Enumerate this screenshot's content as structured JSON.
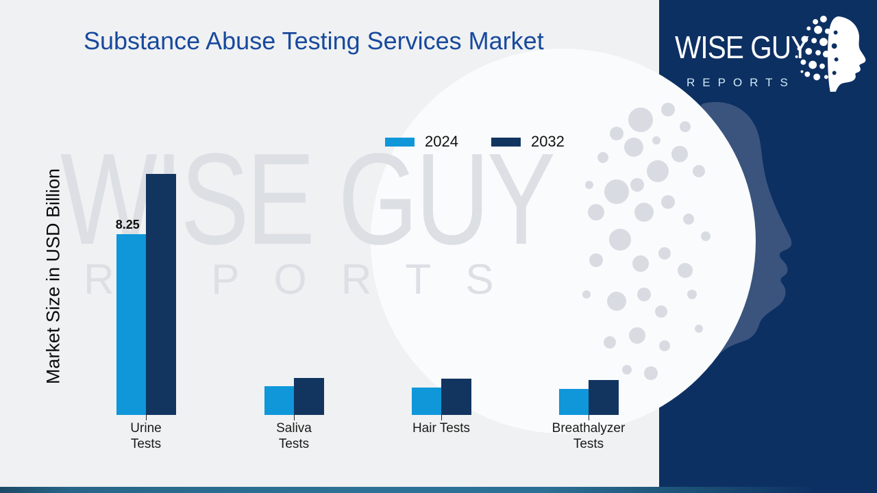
{
  "page": {
    "background": "#f0f1f2",
    "accent_navy": "#0d3063",
    "footer_stripe_teal": "#2d7296"
  },
  "title": {
    "text": "Substance Abuse Testing Services Market",
    "color": "#17499d"
  },
  "legend": [
    {
      "label": "2024",
      "color": "#0f97da"
    },
    {
      "label": "2032",
      "color": "#123560"
    }
  ],
  "watermark": {
    "line1": "WISE GUY",
    "line2": "REPORTS"
  },
  "brand": {
    "line1": "WISE GUY",
    "line2": "REPORTS"
  },
  "chart_data": {
    "type": "bar",
    "title": "Substance Abuse Testing Services Market",
    "categories": [
      "Urine Tests",
      "Saliva Tests",
      "Hair Tests",
      "Breathalyzer Tests"
    ],
    "tick_labels": [
      [
        "Urine",
        "Tests"
      ],
      [
        "Saliva",
        "Tests"
      ],
      [
        "Hair Tests"
      ],
      [
        "Breathalyzer",
        "Tests"
      ]
    ],
    "series": [
      {
        "name": "2024",
        "color": "#0f97da",
        "values": [
          8.25,
          1.32,
          1.25,
          1.18
        ]
      },
      {
        "name": "2032",
        "color": "#123560",
        "values": [
          11.0,
          1.7,
          1.65,
          1.6
        ]
      }
    ],
    "value_labels": [
      {
        "series": "2024",
        "category_index": 0,
        "text": "8.25"
      }
    ],
    "xlabel": "",
    "ylabel": "Market Size in USD Billion",
    "ylim": [
      0,
      12.5
    ],
    "grid": false,
    "legend_position": "top-right"
  }
}
